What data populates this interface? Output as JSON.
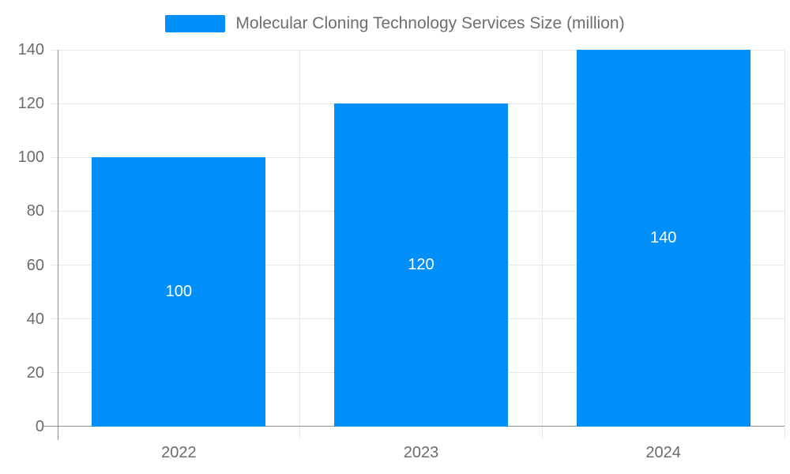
{
  "chart_data": {
    "type": "bar",
    "title": "Molecular Cloning Technology Services Size (million)",
    "categories": [
      "2022",
      "2023",
      "2024"
    ],
    "series": [
      {
        "name": "Molecular Cloning Technology Services Size (million)",
        "values": [
          100,
          120,
          140
        ]
      }
    ],
    "data_labels": [
      "100",
      "120",
      "140"
    ],
    "xlabel": "",
    "ylabel": "",
    "ylim": [
      0,
      140
    ],
    "yticks": [
      0,
      20,
      40,
      60,
      80,
      100,
      120,
      140
    ],
    "grid": true,
    "legend_position": "top",
    "colors": {
      "bar": "#008FFB",
      "bar_label_text": "#ffffff",
      "axis_text": "#6b6b6b",
      "gridline": "#e7e7e7",
      "axis_line": "#8f8f8f"
    }
  }
}
